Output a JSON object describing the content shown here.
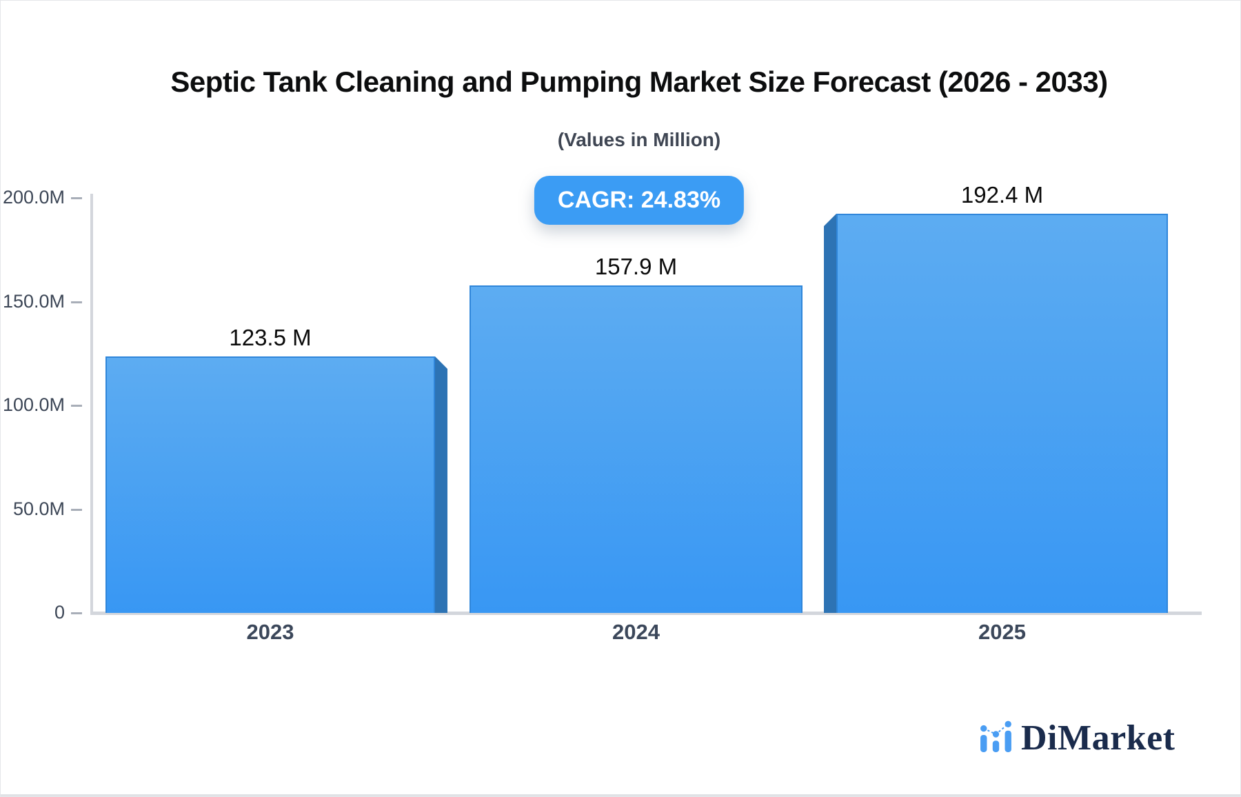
{
  "header": {
    "title": "Septic Tank Cleaning and Pumping Market Size Forecast (2026 - 2033)",
    "subtitle": "(Values in Million)",
    "cagr_label": "CAGR: 24.83%"
  },
  "chart_data": {
    "type": "bar",
    "title": "Septic Tank Cleaning and Pumping Market Size Forecast (2026 - 2033)",
    "subtitle": "(Values in Million)",
    "categories": [
      "2023",
      "2024",
      "2025"
    ],
    "values": [
      123.5,
      157.9,
      192.4
    ],
    "value_labels": [
      "123.5 M",
      "157.9 M",
      "192.4 M"
    ],
    "annotation": "CAGR: 24.83%",
    "xlabel": "",
    "ylabel": "",
    "ylim": [
      0,
      200
    ],
    "yticks": [
      {
        "value": 0,
        "label": "0"
      },
      {
        "value": 50,
        "label": "50.0M"
      },
      {
        "value": 100,
        "label": "100.0M"
      },
      {
        "value": 150,
        "label": "150.0M"
      },
      {
        "value": 200,
        "label": "200.0M"
      }
    ],
    "grid": false,
    "legend": false,
    "bar_style": "3d-bevel"
  },
  "logo": {
    "text": "DiMarket",
    "icon": "bar-line-chart-icon"
  },
  "colors": {
    "bar_gradient_top": "#5dacf2",
    "bar_gradient_bottom": "#3897f3",
    "bar_border": "#2f86da",
    "bar_side_face": "#2d73b4",
    "badge_background": "#3b9cf4",
    "badge_text": "#ffffff",
    "axis_line": "#d3d6dc",
    "tick_text": "#3c4656",
    "x_label_text": "#3b475a",
    "title_text": "#0c0d0e",
    "subtitle_text": "#3f4653",
    "logo_navy": "#1a2b4c",
    "logo_blue": "#4a9df3"
  }
}
